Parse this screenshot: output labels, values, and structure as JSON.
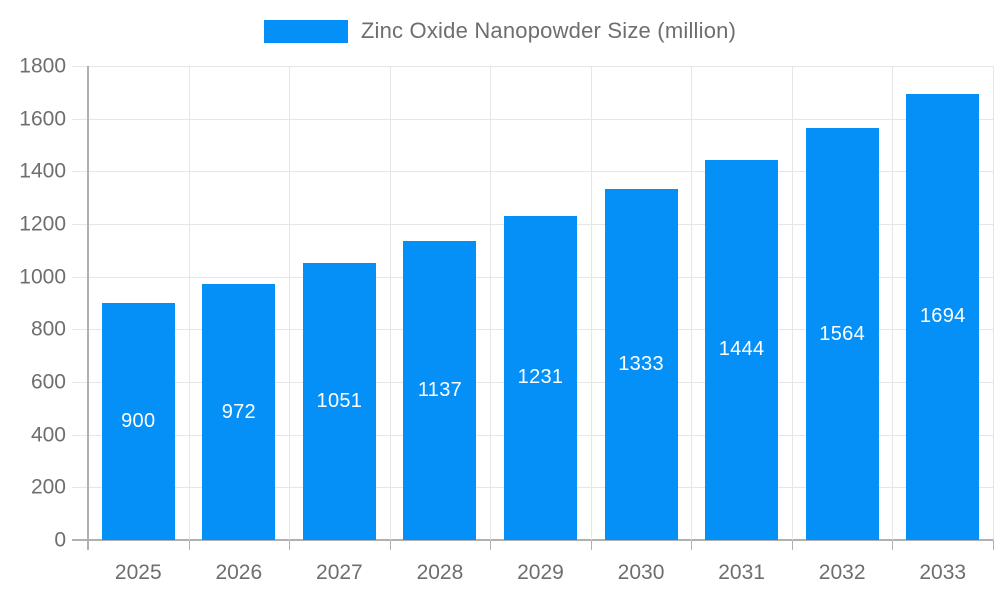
{
  "legend": {
    "label": "Zinc Oxide Nanopowder Size (million)",
    "swatch_color": "#0590f8"
  },
  "chart_data": {
    "type": "bar",
    "title": "Zinc Oxide Nanopowder Size (million)",
    "categories": [
      "2025",
      "2026",
      "2027",
      "2028",
      "2029",
      "2030",
      "2031",
      "2032",
      "2033"
    ],
    "values": [
      900,
      972,
      1051,
      1137,
      1231,
      1333,
      1444,
      1564,
      1694
    ],
    "xlabel": "",
    "ylabel": "",
    "ylim": [
      0,
      1800
    ],
    "ytick_step": 200,
    "yticks": [
      0,
      200,
      400,
      600,
      800,
      1000,
      1200,
      1400,
      1600,
      1800
    ],
    "grid": true,
    "legend_position": "top",
    "bar_color": "#0590f8",
    "value_label_color": "#ffffff",
    "axis_text_color": "#6e6e6e",
    "grid_color": "#e6e6e6",
    "axis_line_color": "#b0b0b0"
  }
}
